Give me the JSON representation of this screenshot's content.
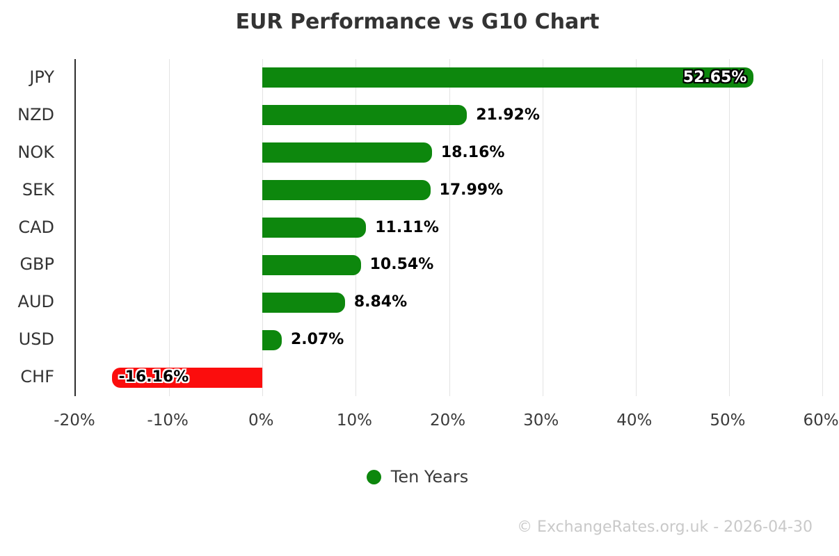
{
  "title": "EUR Performance vs G10 Chart",
  "legend": {
    "label": "Ten Years",
    "marker_color": "#0d870d"
  },
  "watermark": "© ExchangeRates.org.uk - 2026-04-30",
  "colors": {
    "positive_bar": "#0d870d",
    "negative_bar": "#fb0d0d",
    "axis_line": "#2e2e2e",
    "gridline": "#e3e3e3",
    "title_text": "#333333",
    "tick_text": "#3a3a3a",
    "watermark_text": "#c9c9c9"
  },
  "chart_data": {
    "type": "bar",
    "orientation": "horizontal",
    "title": "EUR Performance vs G10 Chart",
    "xlabel": "",
    "ylabel": "",
    "categories": [
      "JPY",
      "NZD",
      "NOK",
      "SEK",
      "CAD",
      "GBP",
      "AUD",
      "USD",
      "CHF"
    ],
    "series": [
      {
        "name": "Ten Years",
        "color": "#0d870d",
        "negative_color": "#fb0d0d",
        "values": [
          52.65,
          21.92,
          18.16,
          17.99,
          11.11,
          10.54,
          8.84,
          2.07,
          -16.16
        ],
        "labels": [
          "52.65%",
          "21.92%",
          "18.16%",
          "17.99%",
          "11.11%",
          "10.54%",
          "8.84%",
          "2.07%",
          "-16.16%"
        ],
        "label_placement": [
          "inside-end",
          "outside",
          "outside",
          "outside",
          "outside",
          "outside",
          "outside",
          "outside",
          "inside-start"
        ]
      }
    ],
    "xlim": [
      -20,
      60
    ],
    "x_ticks": [
      {
        "value": -20,
        "label": "-20%"
      },
      {
        "value": -10,
        "label": "-10%"
      },
      {
        "value": 0,
        "label": "0%"
      },
      {
        "value": 10,
        "label": "10%"
      },
      {
        "value": 20,
        "label": "20%"
      },
      {
        "value": 30,
        "label": "30%"
      },
      {
        "value": 40,
        "label": "40%"
      },
      {
        "value": 50,
        "label": "50%"
      },
      {
        "value": 60,
        "label": "60%"
      }
    ],
    "grid": "vertical",
    "legend_position": "bottom-center"
  }
}
